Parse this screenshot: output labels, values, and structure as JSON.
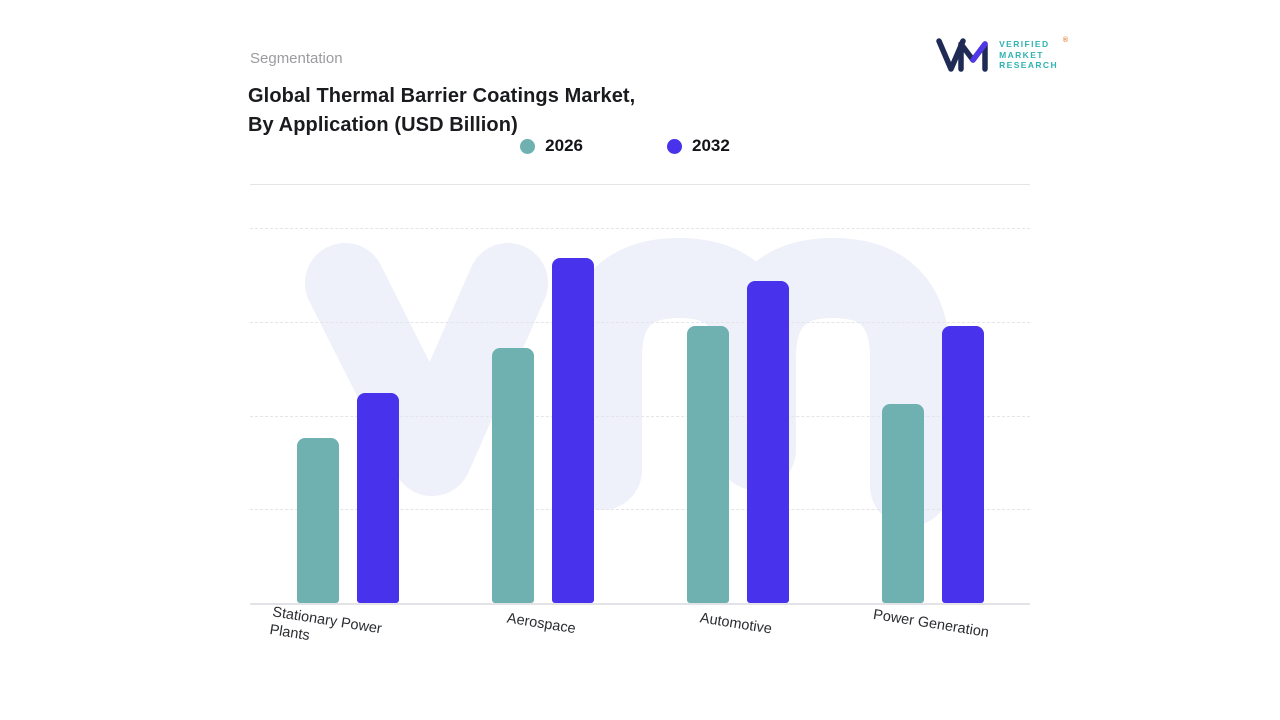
{
  "brand": {
    "logo_text_lines": [
      "VERIFIED",
      "MARKET",
      "RESEARCH"
    ],
    "registered_mark": "®",
    "accent_teal": "#2FB3B3",
    "mark_navy": "#1F2B54",
    "mark_purple": "#5038E8"
  },
  "header": {
    "eyebrow": "Segmentation",
    "title_line1": "Global Thermal Barrier Coatings Market,",
    "title_line2": "By Application (USD Billion)"
  },
  "legend": [
    {
      "label": "2026",
      "color": "#6FB0B1"
    },
    {
      "label": "2032",
      "color": "#4832EC"
    }
  ],
  "chart_data": {
    "type": "bar",
    "title": "Global Thermal Barrier Coatings Market, By Application (USD Billion)",
    "categories": [
      "Stationary Power Plants",
      "Aerospace",
      "Automotive",
      "Power Generation"
    ],
    "series": [
      {
        "name": "2026",
        "color": "#6FB0B1",
        "values": [
          44,
          68,
          74,
          53
        ]
      },
      {
        "name": "2032",
        "color": "#4832EC",
        "values": [
          56,
          92,
          86,
          74
        ]
      }
    ],
    "ylabel": "USD Billion",
    "ylim": [
      0,
      100
    ],
    "grid": "dashed-horizontal",
    "legend_position": "top-center"
  }
}
